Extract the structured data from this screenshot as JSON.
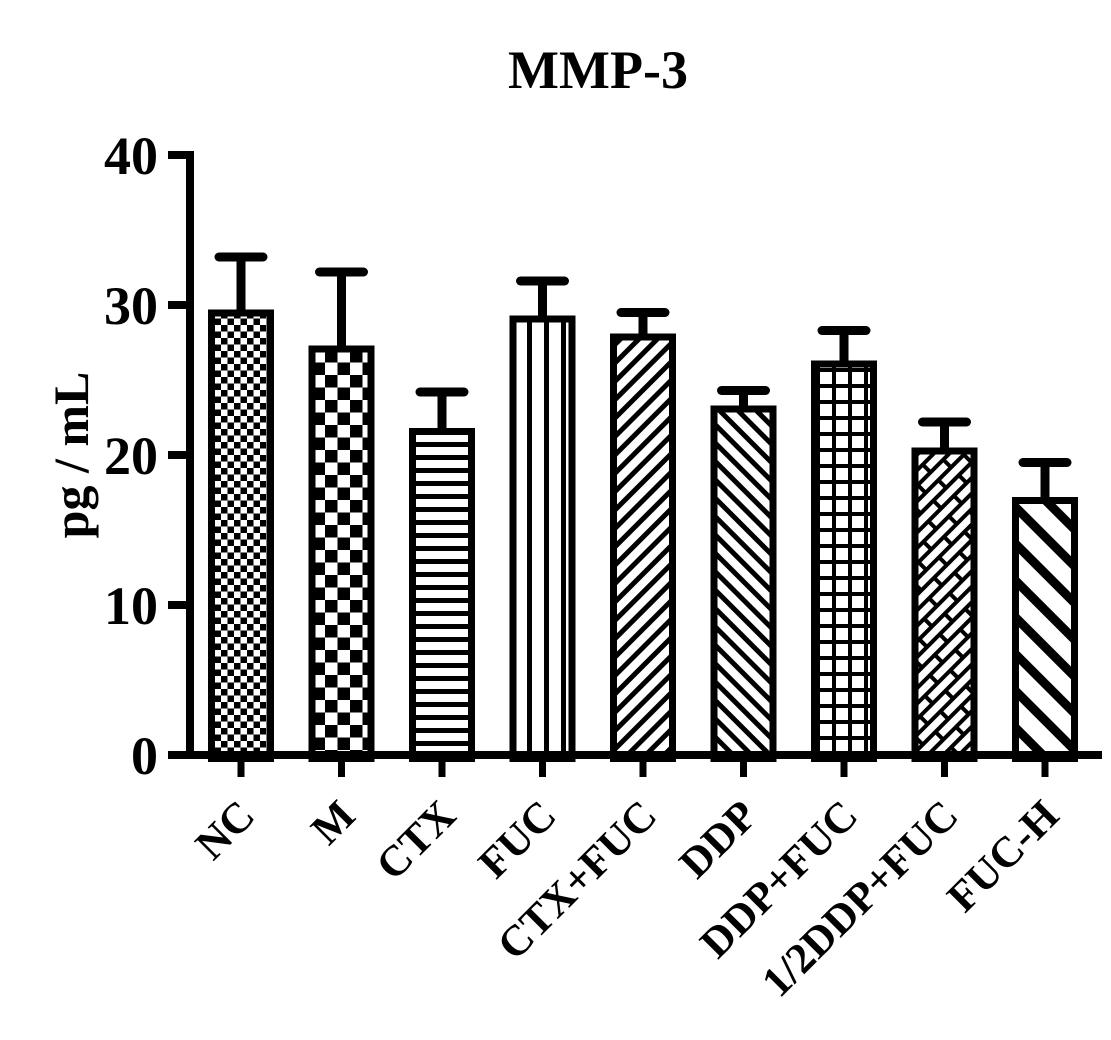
{
  "figure": {
    "title": "MMP-3",
    "background_color": "#ffffff",
    "ink_color": "#000000"
  },
  "chart_data": {
    "type": "bar",
    "title": "MMP-3",
    "xlabel": "",
    "ylabel": "pg / mL",
    "ylim": [
      0,
      40
    ],
    "yticks": [
      0,
      10,
      20,
      30,
      40
    ],
    "grid": false,
    "legend": "none",
    "bar_fill_color": "#ffffff",
    "bar_outline_color": "#000000",
    "error_bar_direction": "up",
    "categories": [
      "NC",
      "M",
      "CTX",
      "FUC",
      "CTX+FUC",
      "DDP",
      "DDP+FUC",
      "1/2DDP+FUC",
      "FUC-H"
    ],
    "values": [
      29.7,
      27.3,
      21.8,
      29.3,
      28.1,
      23.3,
      26.3,
      20.5,
      17.2
    ],
    "errors": [
      3.5,
      4.9,
      2.4,
      2.3,
      1.4,
      1.0,
      2.0,
      1.7,
      2.3
    ],
    "patterns": [
      "checker-fine",
      "checker-coarse",
      "hlines",
      "vlines",
      "diag-forward",
      "diag-backward",
      "grid",
      "brick-diagonal",
      "diag-backward-thick"
    ]
  }
}
